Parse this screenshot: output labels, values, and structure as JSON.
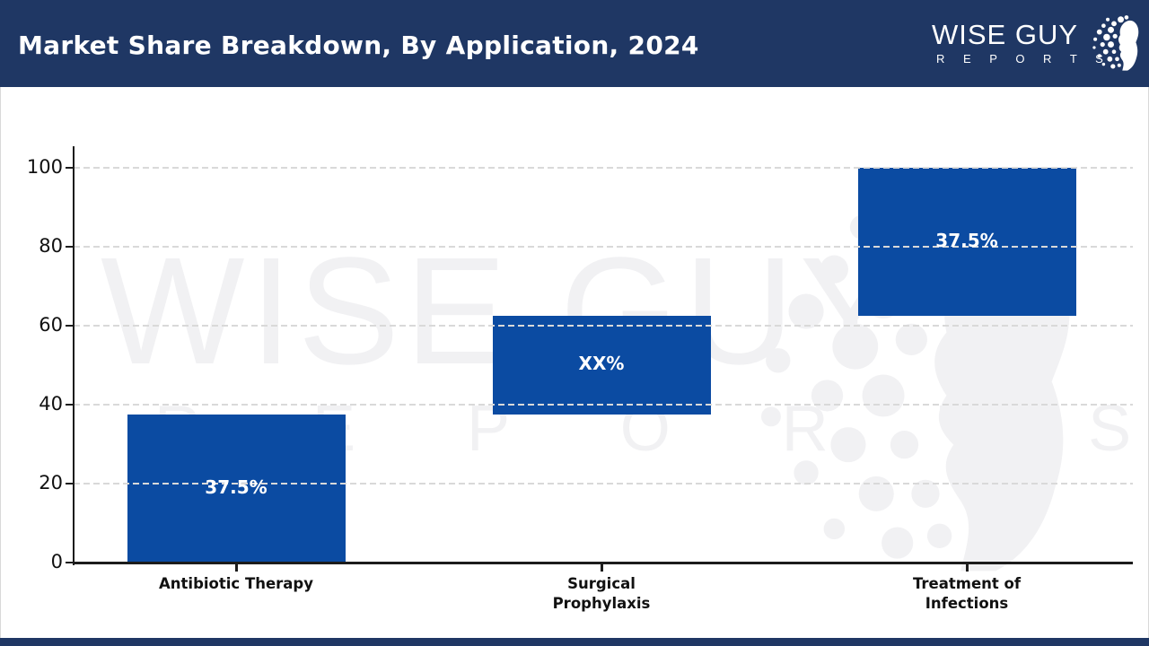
{
  "header": {
    "title": "Market Share Breakdown, By Application, 2024",
    "logo": {
      "line1": "WISE GUY",
      "line2": "R E P O R T S"
    }
  },
  "watermark": {
    "line1": "WISE GUY",
    "line2": "R E P O R T S"
  },
  "colors": {
    "header_bg": "#1f3764",
    "footer_bg": "#1f3764",
    "bar": "#0b4ba2",
    "grid": "#d9d9d9",
    "axis": "#1c1c1c",
    "bar_label": "#ffffff",
    "watermark": "#f1f1f3"
  },
  "chart_data": {
    "type": "bar",
    "subtype": "waterfall",
    "title": "Market Share Breakdown, By Application, 2024",
    "categories": [
      "Antibiotic Therapy",
      "Surgical\nProphylaxis",
      "Treatment of\nInfections"
    ],
    "bars": [
      {
        "category": "Antibiotic Therapy",
        "start": 0,
        "end": 37.5,
        "label": "37.5%"
      },
      {
        "category": "Surgical Prophylaxis",
        "start": 37.5,
        "end": 62.5,
        "label": "XX%"
      },
      {
        "category": "Treatment of Infections",
        "start": 62.5,
        "end": 100,
        "label": "37.5%"
      }
    ],
    "xlabel": "",
    "ylabel": "",
    "ylim": [
      0,
      105
    ],
    "yticks": [
      0,
      20,
      40,
      60,
      80,
      100
    ],
    "grid": "horizontal-dashed",
    "legend": "none",
    "bar_color": "#0b4ba2",
    "label_color": "#ffffff"
  }
}
